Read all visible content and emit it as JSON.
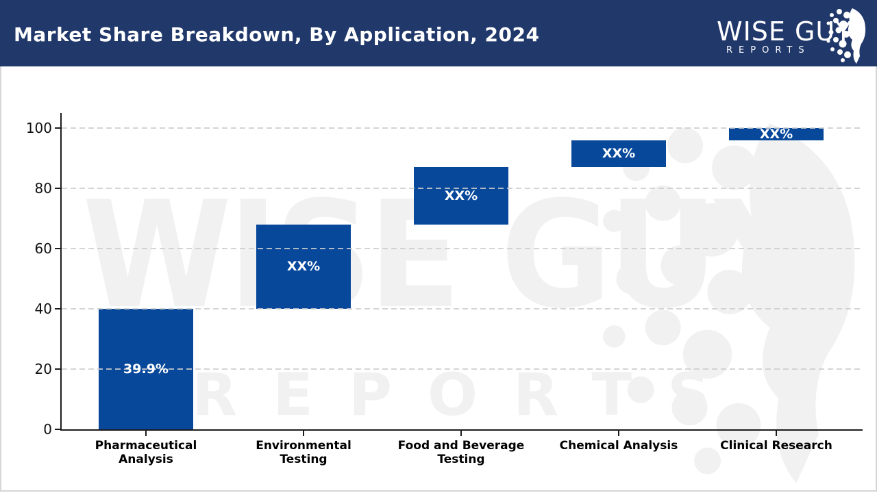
{
  "header": {
    "title": "Market Share Breakdown, By Application, 2024",
    "logo": {
      "line1": "WISE GUY",
      "line2": "REPORTS"
    },
    "bg_color": "#21386B"
  },
  "watermark": {
    "line1": "WISE GUY",
    "line2": "REPORTS"
  },
  "chart_data": {
    "type": "bar",
    "variant": "waterfall",
    "title": "Market Share Breakdown, By Application, 2024",
    "categories": [
      "Pharmaceutical Analysis",
      "Environmental Testing",
      "Food and Beverage Testing",
      "Chemical Analysis",
      "Clinical Research"
    ],
    "category_lines": [
      [
        "Pharmaceutical",
        "Analysis"
      ],
      [
        "Environmental",
        "Testing"
      ],
      [
        "Food and Beverage",
        "Testing"
      ],
      [
        "Chemical Analysis"
      ],
      [
        "Clinical Research"
      ]
    ],
    "segments": [
      {
        "start": 0,
        "end": 40,
        "label": "39.9%"
      },
      {
        "start": 40,
        "end": 68,
        "label": "XX%"
      },
      {
        "start": 68,
        "end": 87,
        "label": "XX%"
      },
      {
        "start": 87,
        "end": 96,
        "label": "XX%"
      },
      {
        "start": 96,
        "end": 100,
        "label": "XX%"
      }
    ],
    "ylim": [
      0,
      100
    ],
    "yticks": [
      0,
      20,
      40,
      60,
      80,
      100
    ],
    "grid": "dashed-horizontal",
    "legend": "none",
    "colors": {
      "bar": "#07489B",
      "bar_label": "#ffffff",
      "grid_line": "#d9d9d9",
      "axis": "#1c1c1c",
      "watermark": "#f1f1f2"
    }
  }
}
